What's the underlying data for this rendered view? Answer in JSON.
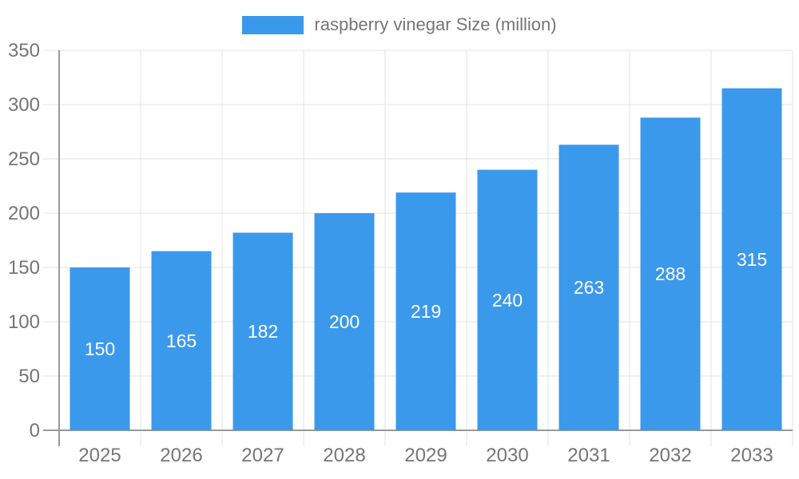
{
  "chart_data": {
    "type": "bar",
    "legend_label": "raspberry vinegar Size (million)",
    "title": "",
    "xlabel": "",
    "ylabel": "",
    "categories": [
      "2025",
      "2026",
      "2027",
      "2028",
      "2029",
      "2030",
      "2031",
      "2032",
      "2033"
    ],
    "values": [
      150,
      165,
      182,
      200,
      219,
      240,
      263,
      288,
      315
    ],
    "ylim": [
      0,
      350
    ],
    "ytick_step": 50,
    "ytick_labels": [
      "0",
      "50",
      "100",
      "150",
      "200",
      "250",
      "300",
      "350"
    ],
    "legend_position": "top",
    "grid": true,
    "value_labels_shown": true,
    "colors": {
      "bar": "#3B99EC",
      "grid": "#E3E3E3",
      "axis": "#999999",
      "text": "#757575",
      "value_label": "#FFFFFF",
      "background": "#FFFFFF"
    }
  }
}
